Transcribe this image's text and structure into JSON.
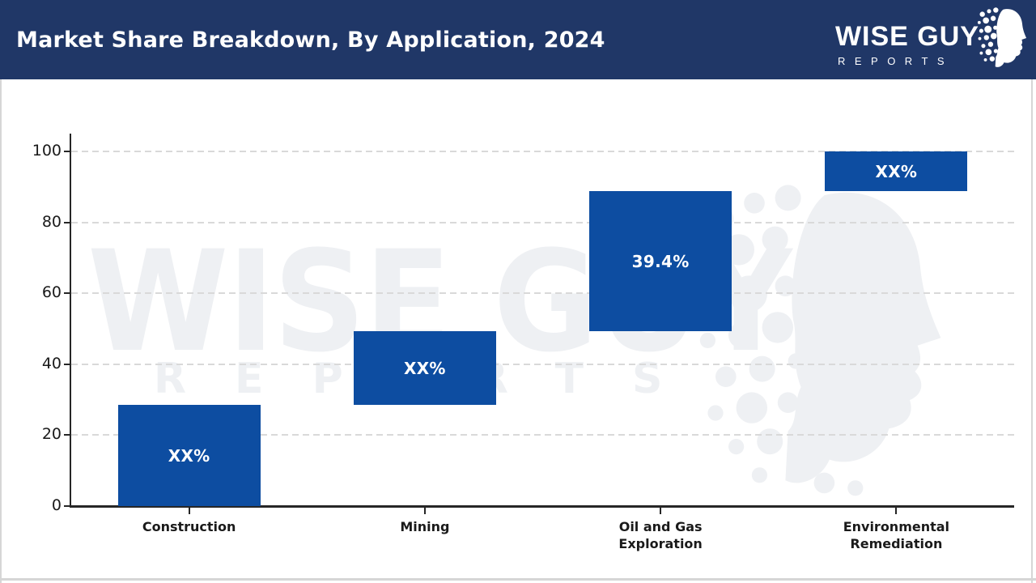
{
  "header": {
    "title": "Market Share Breakdown, By Application, 2024",
    "logo": {
      "line1": "WISE GUY",
      "line2": "REPORTS"
    }
  },
  "watermark": {
    "line1": "WISE GUY",
    "line2": "REPORTS"
  },
  "chart_data": {
    "type": "bar",
    "subtype": "waterfall",
    "title": "Market Share Breakdown, By Application, 2024",
    "unit": "percent",
    "categories": [
      "Construction",
      "Mining",
      "Oil and Gas Exploration",
      "Environmental Remediation"
    ],
    "category_lines": [
      [
        "Construction"
      ],
      [
        "Mining"
      ],
      [
        "Oil and Gas",
        "Exploration"
      ],
      [
        "Environmental",
        "Remediation"
      ]
    ],
    "segments": [
      {
        "category": "Construction",
        "label": "XX%",
        "start": 0,
        "end": 28.5
      },
      {
        "category": "Mining",
        "label": "XX%",
        "start": 28.5,
        "end": 49.3
      },
      {
        "category": "Oil and Gas Exploration",
        "label": "39.4%",
        "start": 49.3,
        "end": 88.7,
        "value": 39.4
      },
      {
        "category": "Environmental Remediation",
        "label": "XX%",
        "start": 88.7,
        "end": 100
      }
    ],
    "xlabel": "",
    "ylabel": "",
    "yticks": [
      0,
      20,
      40,
      60,
      80,
      100
    ],
    "ytick_labels": [
      "0",
      "20",
      "40",
      "60",
      "80",
      "100"
    ],
    "ylim": [
      0,
      105
    ],
    "grid": "horizontal-dashed",
    "legend": "none",
    "bar_color": "#0d4da1",
    "bar_label_color": "#ffffff"
  },
  "colors": {
    "header_bg": "#203767",
    "bar": "#0d4da1",
    "grid": "#d9d9d9",
    "axis": "#262626",
    "text": "#1a1a1a",
    "watermark": "#eef0f3",
    "frame_border": "#d6d6d6"
  }
}
